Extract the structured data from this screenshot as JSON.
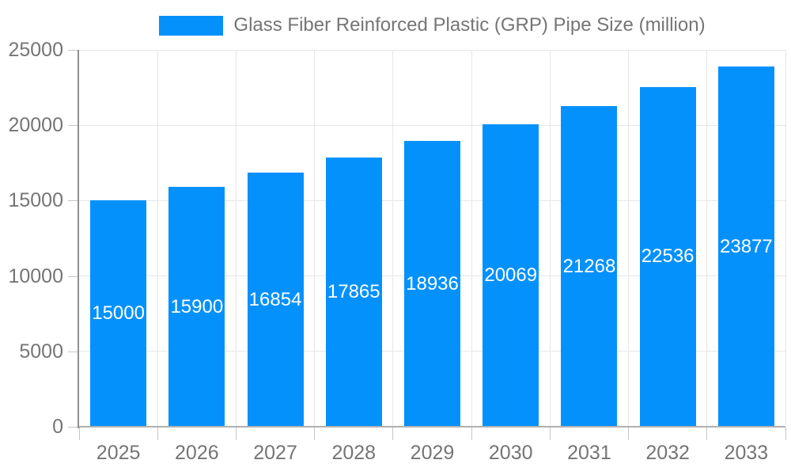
{
  "chart_data": {
    "type": "bar",
    "title": "Glass Fiber Reinforced Plastic (GRP) Pipe Size (million)",
    "series": [
      {
        "name": "Glass Fiber Reinforced Plastic (GRP) Pipe Size (million)",
        "values": [
          15000,
          15900,
          16854,
          17865,
          18936,
          20069,
          21268,
          22536,
          23877
        ]
      }
    ],
    "categories": [
      "2025",
      "2026",
      "2027",
      "2028",
      "2029",
      "2030",
      "2031",
      "2032",
      "2033"
    ],
    "bar_labels": [
      "15000",
      "15900",
      "16854",
      "17865",
      "18936",
      "20069",
      "21268",
      "22536",
      "23877"
    ],
    "xlabel": "",
    "ylabel": "",
    "ylim": [
      0,
      25000
    ],
    "yticks": [
      0,
      5000,
      10000,
      15000,
      20000,
      25000
    ],
    "ytick_labels": [
      "0",
      "5000",
      "10000",
      "15000",
      "20000",
      "25000"
    ],
    "grid": true,
    "legend_position": "top",
    "colors": {
      "bar": "#0591fc",
      "bar_label_text": "#ffffff",
      "axis_text": "#757575",
      "legend_text": "#757575",
      "grid_line": "#e6e6e6",
      "y_axis_line": "#8f8f8f",
      "x_axis_line": "#b0b0b0",
      "tick_line": "#c6c6c6",
      "background": "#ffffff"
    }
  }
}
